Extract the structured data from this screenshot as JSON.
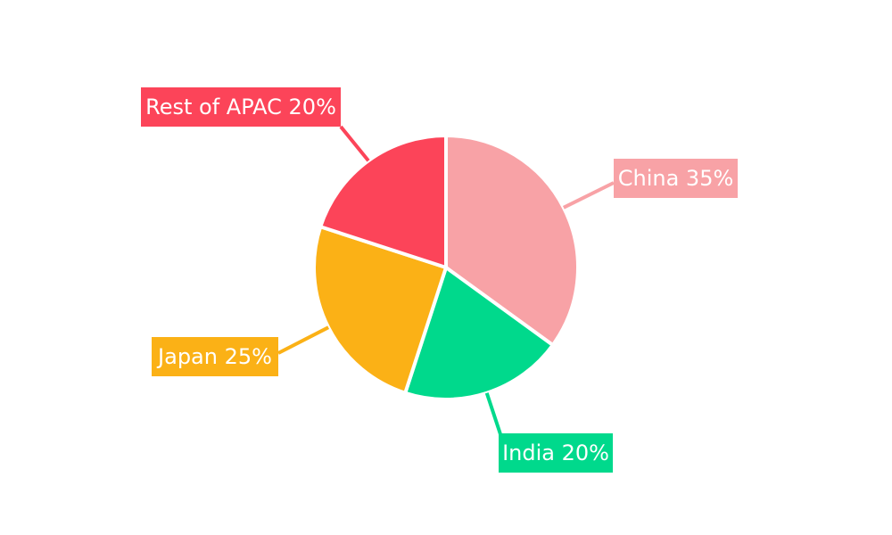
{
  "chart_data": {
    "type": "pie",
    "title": "",
    "unit": "%",
    "direction": "clockwise",
    "start_angle_deg": 0,
    "legend_position": "none",
    "background_color": "#FFFFFF",
    "label_text_color": "#FFFFFF",
    "categories": [
      "China",
      "India",
      "Japan",
      "Rest of APAC"
    ],
    "values": [
      35,
      20,
      25,
      20
    ],
    "slices": [
      {
        "label": "China",
        "value": 35,
        "callout_text": "China 35%",
        "color": "#F8A2A6"
      },
      {
        "label": "India",
        "value": 20,
        "callout_text": "India 20%",
        "color": "#00D98C"
      },
      {
        "label": "Japan",
        "value": 25,
        "callout_text": "Japan 25%",
        "color": "#FBB116"
      },
      {
        "label": "Rest of APAC",
        "value": 20,
        "callout_text": "Rest of APAC 20%",
        "color": "#FC4459"
      }
    ]
  }
}
